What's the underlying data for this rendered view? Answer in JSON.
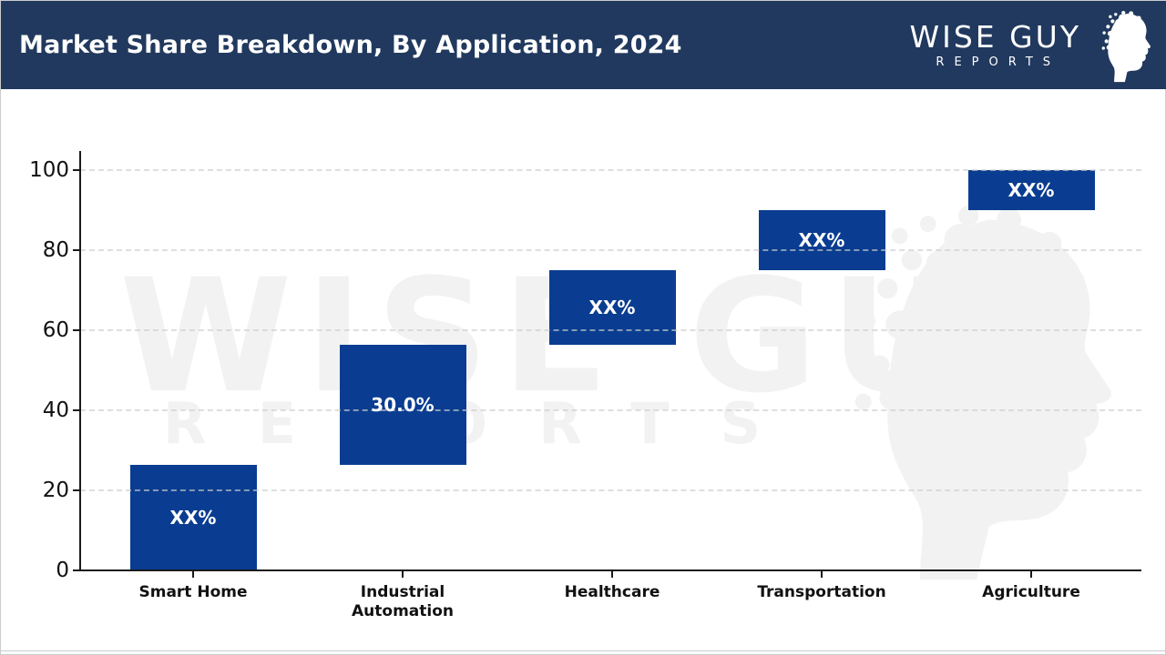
{
  "header": {
    "title": "Market Share Breakdown, By Application, 2024",
    "logo": {
      "line1": "WISE GUY",
      "line2": "REPORTS"
    },
    "bg_color": "#21395e"
  },
  "watermark": {
    "line1": "WISE GUY",
    "line2": "REPORTS"
  },
  "chart_data": {
    "type": "bar",
    "subtype": "waterfall",
    "title": "Market Share Breakdown, By Application, 2024",
    "categories": [
      "Smart Home",
      "Industrial Automation",
      "Healthcare",
      "Transportation",
      "Agriculture"
    ],
    "bars": [
      {
        "category": "Smart Home",
        "start": 0,
        "end": 26.3,
        "label": "XX%"
      },
      {
        "category": "Industrial Automation",
        "start": 26.3,
        "end": 56.3,
        "label": "30.0%"
      },
      {
        "category": "Healthcare",
        "start": 56.3,
        "end": 75.0,
        "label": "XX%"
      },
      {
        "category": "Transportation",
        "start": 75.0,
        "end": 90.0,
        "label": "XX%"
      },
      {
        "category": "Agriculture",
        "start": 90.0,
        "end": 100.0,
        "label": "XX%"
      }
    ],
    "xlabel": "",
    "ylabel": "",
    "ylim": [
      0,
      100
    ],
    "yticks": [
      0,
      20,
      40,
      60,
      80,
      100
    ],
    "grid": "horizontal-dashed",
    "legend": "none",
    "bar_color": "#0a3d91",
    "bar_label_color": "#ffffff",
    "axis_color": "#1a1a1a"
  }
}
